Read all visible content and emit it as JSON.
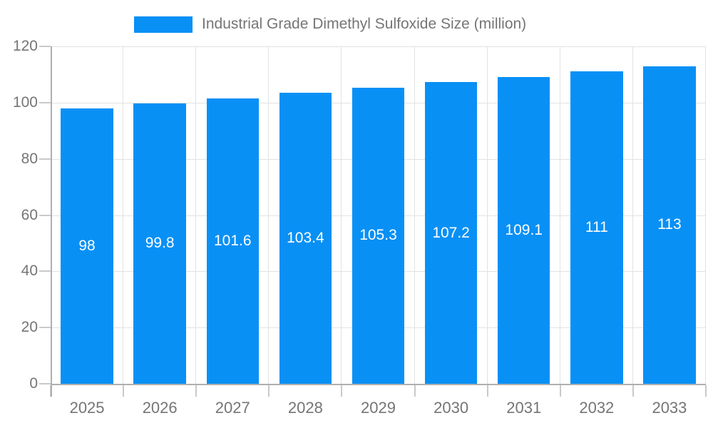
{
  "chart_data": {
    "type": "bar",
    "title": "Industrial Grade Dimethyl Sulfoxide Size (million)",
    "categories": [
      "2025",
      "2026",
      "2027",
      "2028",
      "2029",
      "2030",
      "2031",
      "2032",
      "2033"
    ],
    "values": [
      98,
      99.8,
      101.6,
      103.4,
      105.3,
      107.2,
      109.1,
      111,
      113
    ],
    "value_labels": [
      "98",
      "99.8",
      "101.6",
      "103.4",
      "105.3",
      "107.2",
      "109.1",
      "111",
      "113"
    ],
    "xlabel": "",
    "ylabel": "",
    "ylim": [
      0,
      120
    ],
    "y_ticks": [
      0,
      20,
      40,
      60,
      80,
      100,
      120
    ],
    "grid": true,
    "legend_position": "top",
    "legend": {
      "label": "Industrial Grade Dimethyl Sulfoxide Size (million)"
    },
    "bar_color": "#0990f5",
    "value_label_color": "#ffffff",
    "axis_text_color": "#757575"
  }
}
